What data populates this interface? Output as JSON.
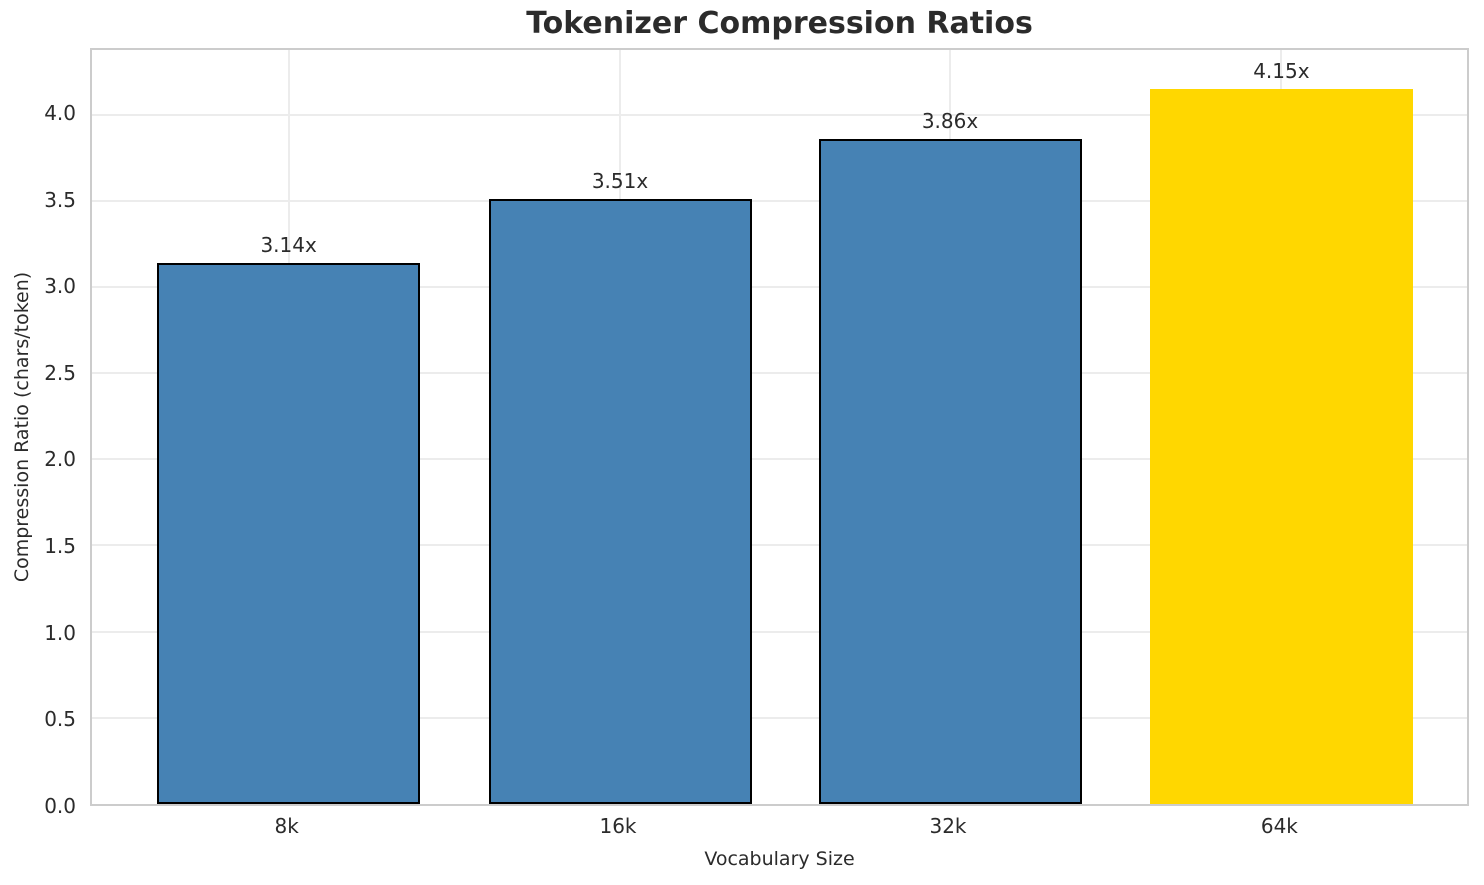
{
  "chart_data": {
    "type": "bar",
    "title": "Tokenizer Compression Ratios",
    "xlabel": "Vocabulary Size",
    "ylabel": "Compression Ratio (chars/token)",
    "categories": [
      "8k",
      "16k",
      "32k",
      "64k"
    ],
    "values": [
      3.14,
      3.51,
      3.86,
      4.15
    ],
    "value_labels": [
      "3.14x",
      "3.51x",
      "3.86x",
      "4.15x"
    ],
    "bar_colors": [
      "#4682b4",
      "#4682b4",
      "#4682b4",
      "#ffd700"
    ],
    "bar_edge_colors": [
      "#000000",
      "#000000",
      "#000000",
      "none"
    ],
    "ytick_labels": [
      "0.0",
      "0.5",
      "1.0",
      "1.5",
      "2.0",
      "2.5",
      "3.0",
      "3.5",
      "4.0"
    ],
    "yticks": [
      0.0,
      0.5,
      1.0,
      1.5,
      2.0,
      2.5,
      3.0,
      3.5,
      4.0
    ],
    "ylim": [
      0,
      4.375
    ],
    "grid": true,
    "legend": "none",
    "colors": {
      "bar_blue": "#4682b4",
      "bar_gold": "#ffd700",
      "grid": "#ececec",
      "spine": "#cccccc",
      "text": "#2b2b2b",
      "background": "#ffffff"
    }
  }
}
